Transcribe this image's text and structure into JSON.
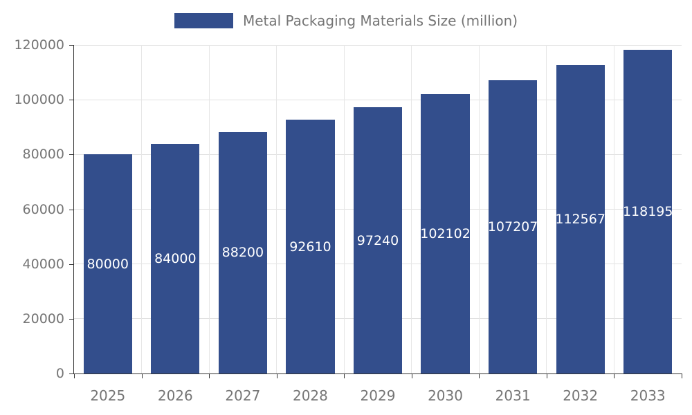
{
  "chart_data": {
    "type": "bar",
    "title": "Metal Packaging Materials Size (million)",
    "legend_entries": [
      "Metal Packaging Materials Size (million)"
    ],
    "categories": [
      "2025",
      "2026",
      "2027",
      "2028",
      "2029",
      "2030",
      "2031",
      "2032",
      "2033"
    ],
    "values": [
      80000,
      84000,
      88200,
      92610,
      97240,
      102102,
      107207,
      112567,
      118195
    ],
    "value_labels": [
      "80000",
      "84000",
      "88200",
      "92610",
      "97240",
      "102102",
      "107207",
      "112567",
      "118195"
    ],
    "xlabel": "",
    "ylabel": "",
    "ylim": [
      0,
      120000
    ],
    "yticks": [
      0,
      20000,
      40000,
      60000,
      80000,
      100000,
      120000
    ],
    "ytick_labels": [
      "0",
      "20000",
      "40000",
      "60000",
      "80000",
      "100000",
      "120000"
    ],
    "grid": true,
    "legend_position": "top-center",
    "colors": {
      "bar": "#334E8C",
      "bar_value_label": "#ffffff",
      "axis": "#333333",
      "grid": "#e0e0e0",
      "tick_label": "#757575",
      "legend_text": "#757575",
      "background": "#ffffff"
    }
  }
}
